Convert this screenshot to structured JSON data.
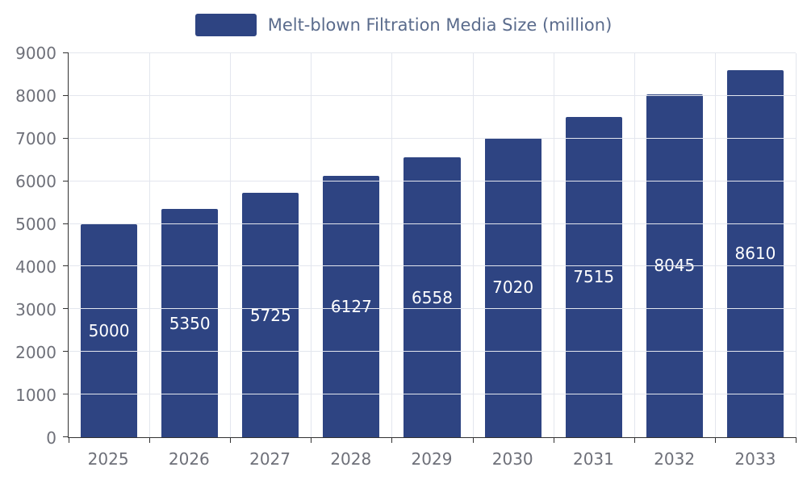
{
  "chart_data": {
    "type": "bar",
    "title": "Melt-blown Filtration Media Size (million)",
    "categories": [
      "2025",
      "2026",
      "2027",
      "2028",
      "2029",
      "2030",
      "2031",
      "2032",
      "2033"
    ],
    "values": [
      5000,
      5350,
      5725,
      6127,
      6558,
      7020,
      7515,
      8045,
      8610
    ],
    "xlabel": "",
    "ylabel": "",
    "ylim": [
      0,
      9000
    ],
    "ytick_step": 1000,
    "legend_position": "top",
    "grid": true,
    "value_labels": "inside-center-white",
    "colors": {
      "bar": "#2E4482",
      "bar_label": "#FFFFFF",
      "axis_text": "#6E7079",
      "legend_text": "#5A6B8C",
      "grid_line": "#E3E6EE",
      "axis_line": "#333333"
    }
  }
}
